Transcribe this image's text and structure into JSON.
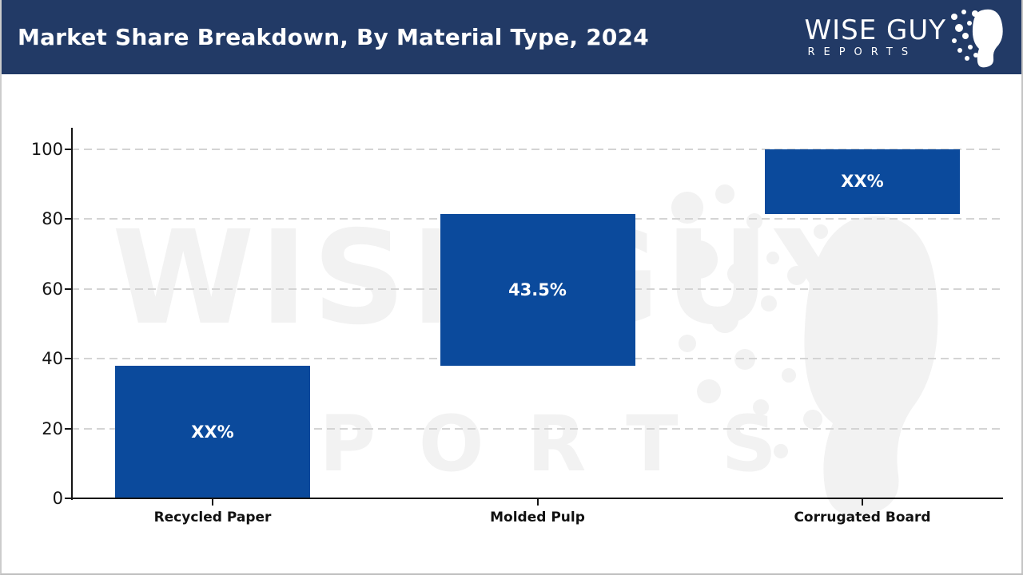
{
  "header": {
    "title": "Market Share Breakdown, By Material Type, 2024",
    "bg_color": "#223a66"
  },
  "logo": {
    "name": "WISE GUY",
    "subtitle": "REPORTS",
    "face_icon": "dotted-head-profile-icon",
    "color": "#ffffff"
  },
  "watermark": {
    "line1": "WISE GUY",
    "line2": "REPORTS",
    "color": "#f2f2f2"
  },
  "chart_data": {
    "type": "bar",
    "subtype": "waterfall",
    "title": "Market Share Breakdown, By Material Type, 2024",
    "categories": [
      "Recycled Paper",
      "Molded Pulp",
      "Corrugated Board"
    ],
    "segments": [
      {
        "category": "Recycled Paper",
        "start": 0,
        "end": 38,
        "label": "XX%"
      },
      {
        "category": "Molded Pulp",
        "start": 38,
        "end": 81.5,
        "label": "43.5%"
      },
      {
        "category": "Corrugated Board",
        "start": 81.5,
        "end": 100,
        "label": "XX%"
      }
    ],
    "yticks": [
      0,
      20,
      40,
      60,
      80,
      100
    ],
    "ylim": [
      0,
      106
    ],
    "xlabel": "",
    "ylabel": "",
    "grid": "horizontal-dashed",
    "legend": "none",
    "bar_color": "#0b4a9c",
    "bar_label_color": "#ffffff",
    "axis_color": "#141414",
    "gridline_color": "#d4d4d4"
  }
}
